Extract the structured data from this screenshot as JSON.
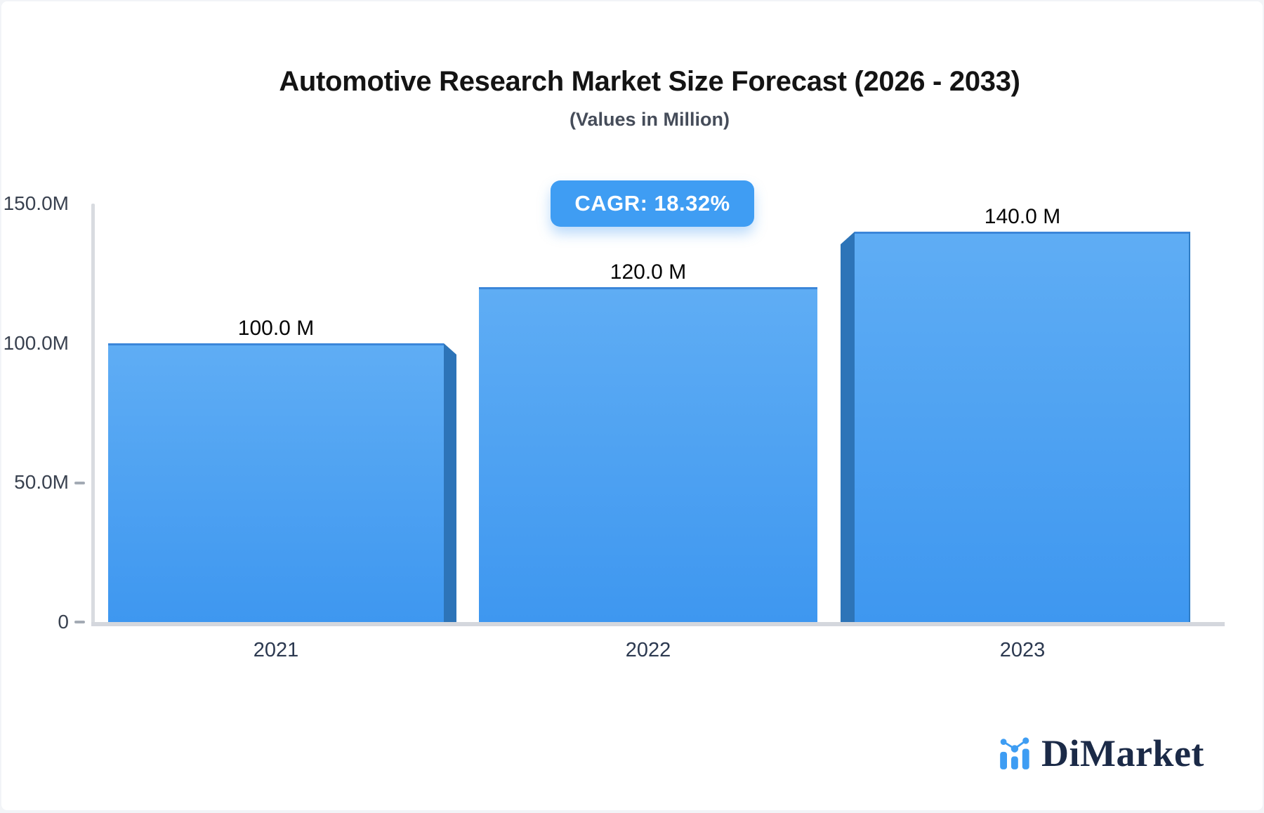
{
  "header": {
    "title": "Automotive Research Market Size Forecast (2026 - 2033)",
    "subtitle": "(Values in Million)",
    "cagr_badge": "CAGR: 18.32%"
  },
  "chart_data": {
    "type": "bar",
    "title": "Automotive Research Market Size Forecast (2026 - 2033)",
    "subtitle": "(Values in Million)",
    "units": "Million",
    "cagr_percent": 18.32,
    "categories": [
      "2021",
      "2022",
      "2023"
    ],
    "values": [
      100,
      120,
      140
    ],
    "value_labels": [
      "100.0 M",
      "120.0 M",
      "140.0 M"
    ],
    "ylim": [
      0,
      150
    ],
    "y_tick_labels": [
      "150.0M",
      "100.0M",
      "50.0M",
      "0"
    ],
    "y_tick_values": [
      150,
      100,
      50,
      0
    ],
    "grid": false,
    "legend": false,
    "accent_color": "#3f9df3",
    "bar_colors": {
      "face_top": "#5fadf4",
      "face_bottom": "#3e97f0",
      "side": "#2d74b8",
      "top_edge": "#3b86d9"
    }
  },
  "branding": {
    "logo_text": "DiMarket",
    "logo_icon": "bar-chart-trend-icon",
    "logo_icon_color": "#3e9df3",
    "logo_text_color": "#1b2a47"
  }
}
